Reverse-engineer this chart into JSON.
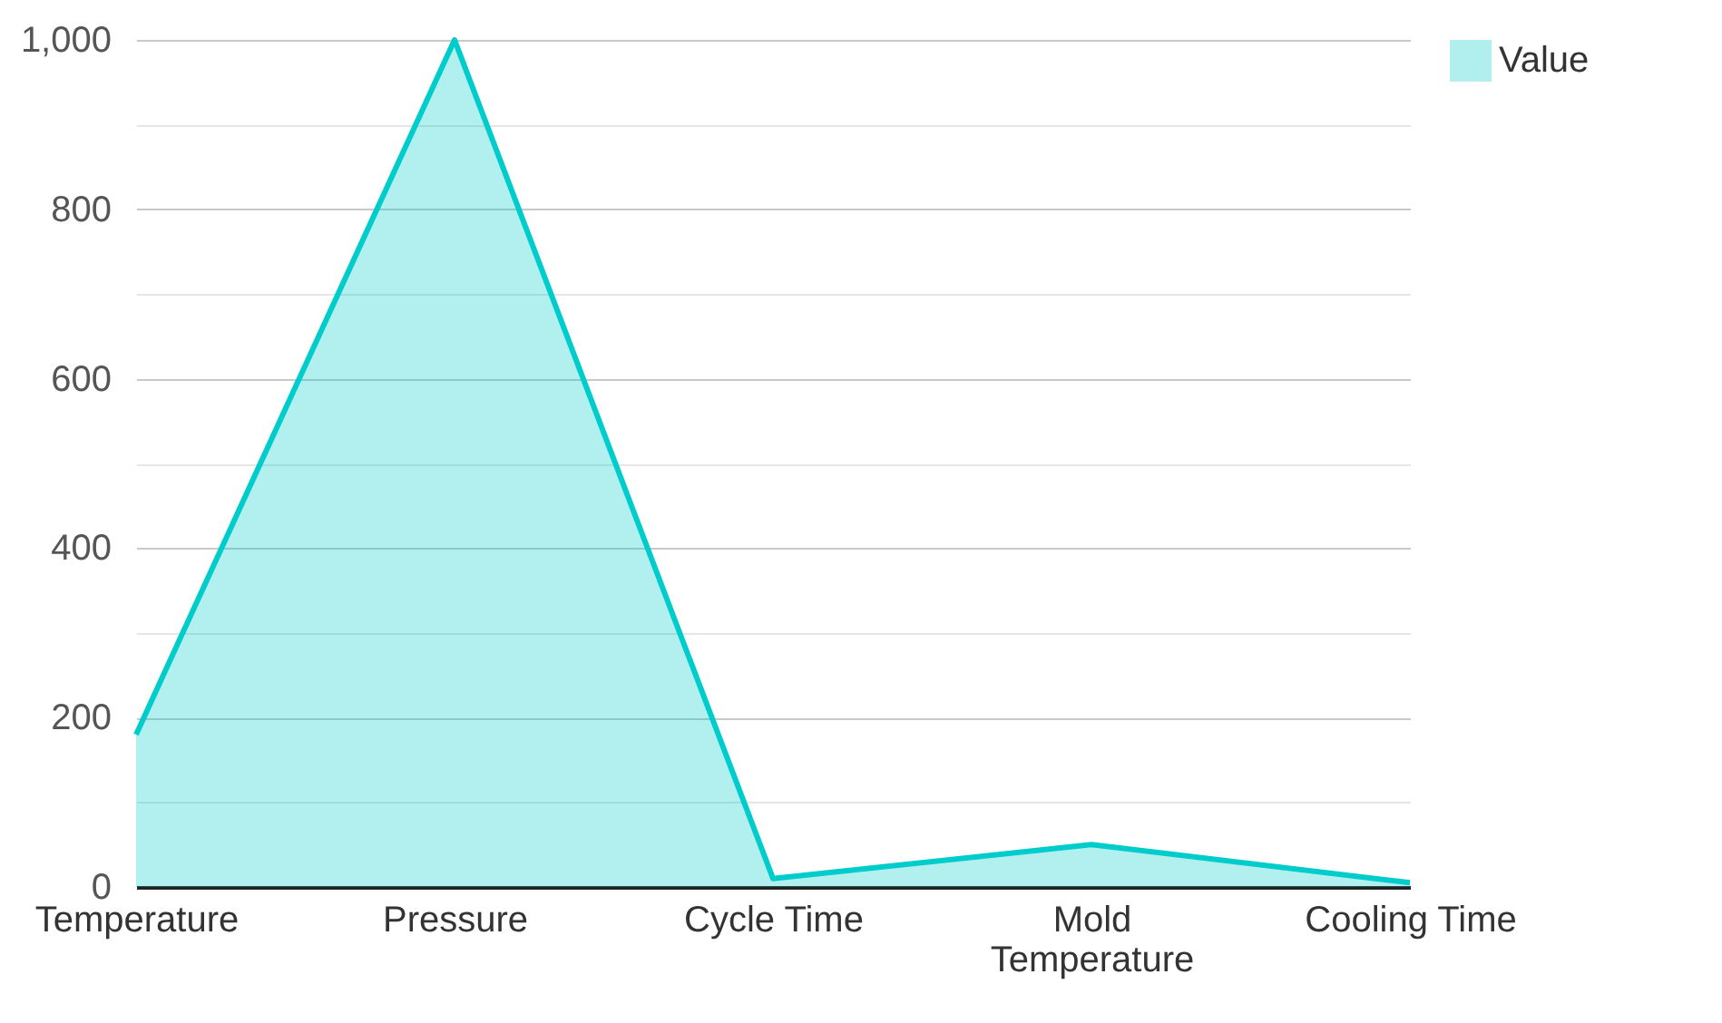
{
  "chart_data": {
    "type": "area",
    "categories": [
      "Temperature",
      "Pressure",
      "Cycle Time",
      "Mold Temperature",
      "Cooling Time"
    ],
    "series": [
      {
        "name": "Value",
        "color": "#00cccc",
        "values": [
          180,
          1000,
          10,
          50,
          5
        ]
      }
    ],
    "ylim": [
      0,
      1000
    ],
    "yticks": [
      0,
      {
        "value": 100,
        "label": null
      },
      200,
      {
        "value": 300,
        "label": null
      },
      400,
      {
        "value": 500,
        "label": null
      },
      600,
      {
        "value": 700,
        "label": null
      },
      800,
      {
        "value": 900,
        "label": null
      },
      {
        "value": 1000,
        "label": "1,000"
      }
    ],
    "grid": "y",
    "legend": "top right"
  }
}
